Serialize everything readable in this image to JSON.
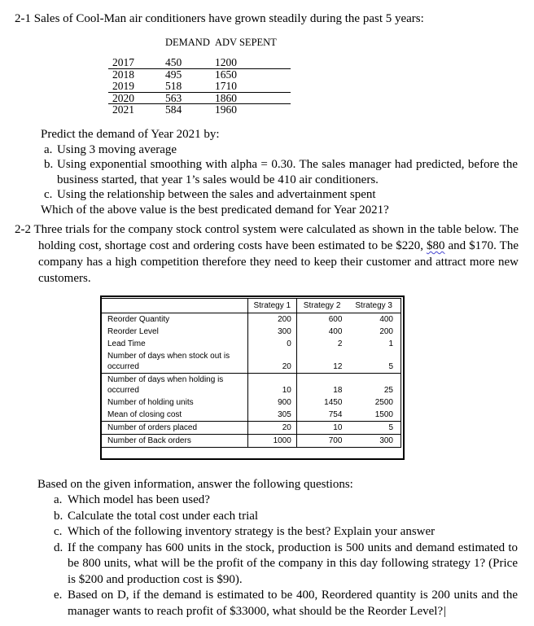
{
  "document": {
    "q21": {
      "intro": "2-1 Sales of Cool-Man air conditioners have grown steadily during the past 5 years:",
      "table": {
        "headers": [
          "DEMAND",
          "ADV SEPENT"
        ],
        "rows": [
          {
            "year": "2017",
            "demand": "450",
            "adv": "1200",
            "underline": true
          },
          {
            "year": "2018",
            "demand": "495",
            "adv": "1650",
            "underline": false
          },
          {
            "year": "2019",
            "demand": "518",
            "adv": "1710",
            "underline": true
          },
          {
            "year": "2020",
            "demand": "563",
            "adv": "1860",
            "underline": true
          },
          {
            "year": "2021",
            "demand": "584",
            "adv": "1960",
            "underline": false
          }
        ]
      },
      "predict_heading": "Predict the demand of Year 2021 by:",
      "items": [
        {
          "marker": "a.",
          "text": "Using 3 moving average"
        },
        {
          "marker": "b.",
          "text": "Using exponential smoothing with alpha = 0.30. The sales manager had predicted, before the business started, that year 1’s sales would be 410 air conditioners."
        },
        {
          "marker": "c.",
          "text": "Using the relationship between the sales and advertainment spent"
        }
      ],
      "closing": "Which of the above value is the best predicated demand for Year 2021?"
    },
    "q22": {
      "intro_before": "2-2 Three trials for the company stock control system were calculated as shown in the table below. The holding cost, shortage cost and ordering costs have been estimated to be $220, ",
      "underlined": "$80",
      "intro_after": " and $170. The company has a high competition therefore they need to keep their customer and attract more new customers.",
      "table": {
        "col_headers": [
          "Strategy 1",
          "Strategy 2",
          "Strategy 3"
        ],
        "rows": [
          {
            "label": "Reorder Quantity",
            "s1": "200",
            "s2": "600",
            "s3": "400",
            "divider": false
          },
          {
            "label": "Reorder Level",
            "s1": "300",
            "s2": "400",
            "s3": "200",
            "divider": false
          },
          {
            "label": "Lead Time",
            "s1": "0",
            "s2": "2",
            "s3": "1",
            "divider": false
          },
          {
            "label": "Number of days when stock out is occurred",
            "s1": "20",
            "s2": "12",
            "s3": "5",
            "divider": true
          },
          {
            "label": "Number of days when holding is occurred",
            "s1": "10",
            "s2": "18",
            "s3": "25",
            "divider": false
          },
          {
            "label": "Number of holding units",
            "s1": "900",
            "s2": "1450",
            "s3": "2500",
            "divider": false
          },
          {
            "label": "Mean of closing cost",
            "s1": "305",
            "s2": "754",
            "s3": "1500",
            "divider": true
          },
          {
            "label": "Number of orders placed",
            "s1": "20",
            "s2": "10",
            "s3": "5",
            "divider": true
          },
          {
            "label": "Number of Back orders",
            "s1": "1000",
            "s2": "700",
            "s3": "300",
            "divider": true
          }
        ]
      },
      "questions_intro": "Based on the given information, answer the following questions:",
      "items": [
        {
          "marker": "a.",
          "text": "Which model has been used?"
        },
        {
          "marker": "b.",
          "text": "Calculate the total cost under each trial"
        },
        {
          "marker": "c.",
          "text": "Which of the following inventory strategy is the best? Explain your answer"
        },
        {
          "marker": "d.",
          "text": "If the company has 600 units in the stock, production is 500 units and demand estimated to be 800 units, what will be the profit of the company in this day following strategy 1? (Price is $200 and production cost is $90)."
        },
        {
          "marker": "e.",
          "text": "Based on D, if the demand is estimated to be 400, Reordered quantity is 200 units and the manager wants to reach profit of $33000, what should be the Reorder Level?"
        }
      ],
      "caret": "|"
    }
  }
}
